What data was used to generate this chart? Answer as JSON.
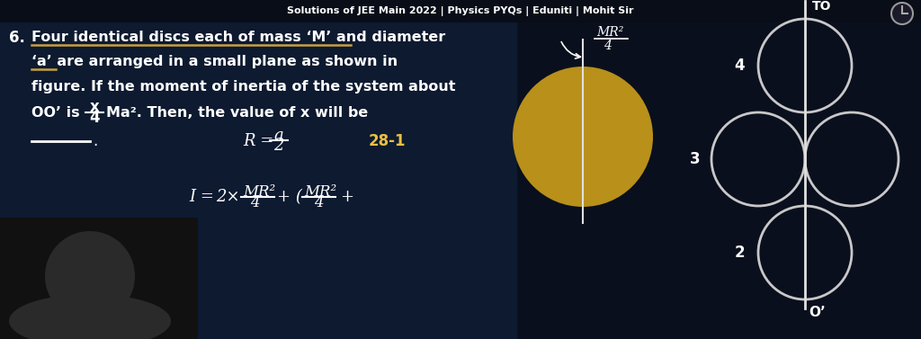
{
  "bg_color": "#0a0f1e",
  "bg_color_left": "#0d1a30",
  "top_text": "Solutions of JEE Main 2022 | Physics PYQs | Eduniti | Mohit Sir",
  "top_text_color": "#ffffff",
  "main_text_color": "#ffffff",
  "underline_color": "#c8a040",
  "label_color": "#e8c040",
  "disc_color_left": "#b8901a",
  "disc_line_color": "#e0e0e0",
  "circle_color": "#c8c8c8",
  "fig_width": 10.24,
  "fig_height": 3.77
}
